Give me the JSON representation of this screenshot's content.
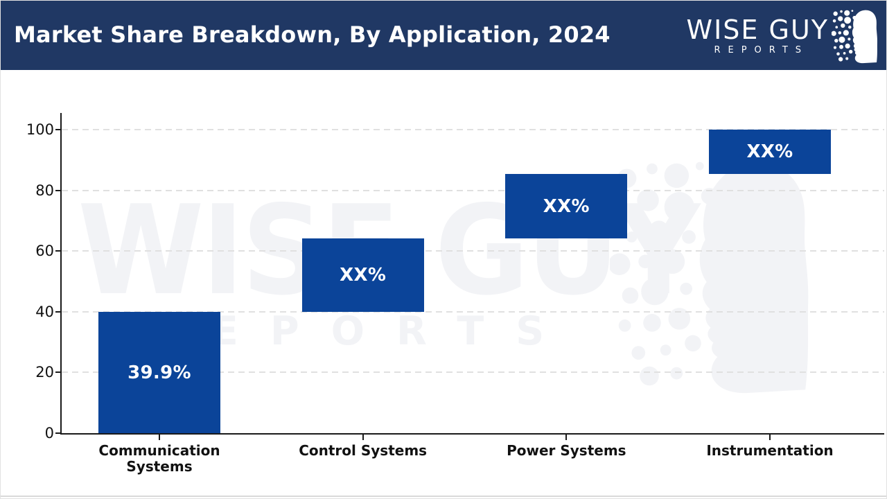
{
  "header": {
    "title": "Market Share Breakdown, By Application, 2024",
    "logo": {
      "line1": "WISE GUY",
      "line2": "REPORTS"
    }
  },
  "watermark": {
    "line1": "WISE GUY",
    "line2": "REPORTS"
  },
  "colors": {
    "header_bg": "#203864",
    "bar": "#0b4499",
    "bar_label_text": "#ffffff",
    "axis": "#1a1a1a",
    "gridline": "#e0e0e0",
    "watermark": "#f2f3f6"
  },
  "chart_data": {
    "type": "bar",
    "subtype": "waterfall",
    "title": "Market Share Breakdown, By Application, 2024",
    "categories": [
      "Communication Systems",
      "Control Systems",
      "Power Systems",
      "Instrumentation"
    ],
    "segments": [
      {
        "category": "Communication Systems",
        "base": 0,
        "top": 39.9,
        "label": "39.9%"
      },
      {
        "category": "Control Systems",
        "base": 39.9,
        "top": 64.1,
        "label": "XX%"
      },
      {
        "category": "Power Systems",
        "base": 64.1,
        "top": 85.3,
        "label": "XX%"
      },
      {
        "category": "Instrumentation",
        "base": 85.3,
        "top": 100,
        "label": "XX%"
      }
    ],
    "yticks": [
      0,
      20,
      40,
      60,
      80,
      100
    ],
    "ylim": [
      0,
      105.5
    ],
    "grid": "dashed-horizontal",
    "legend": "none",
    "xlabel": "",
    "ylabel": ""
  }
}
